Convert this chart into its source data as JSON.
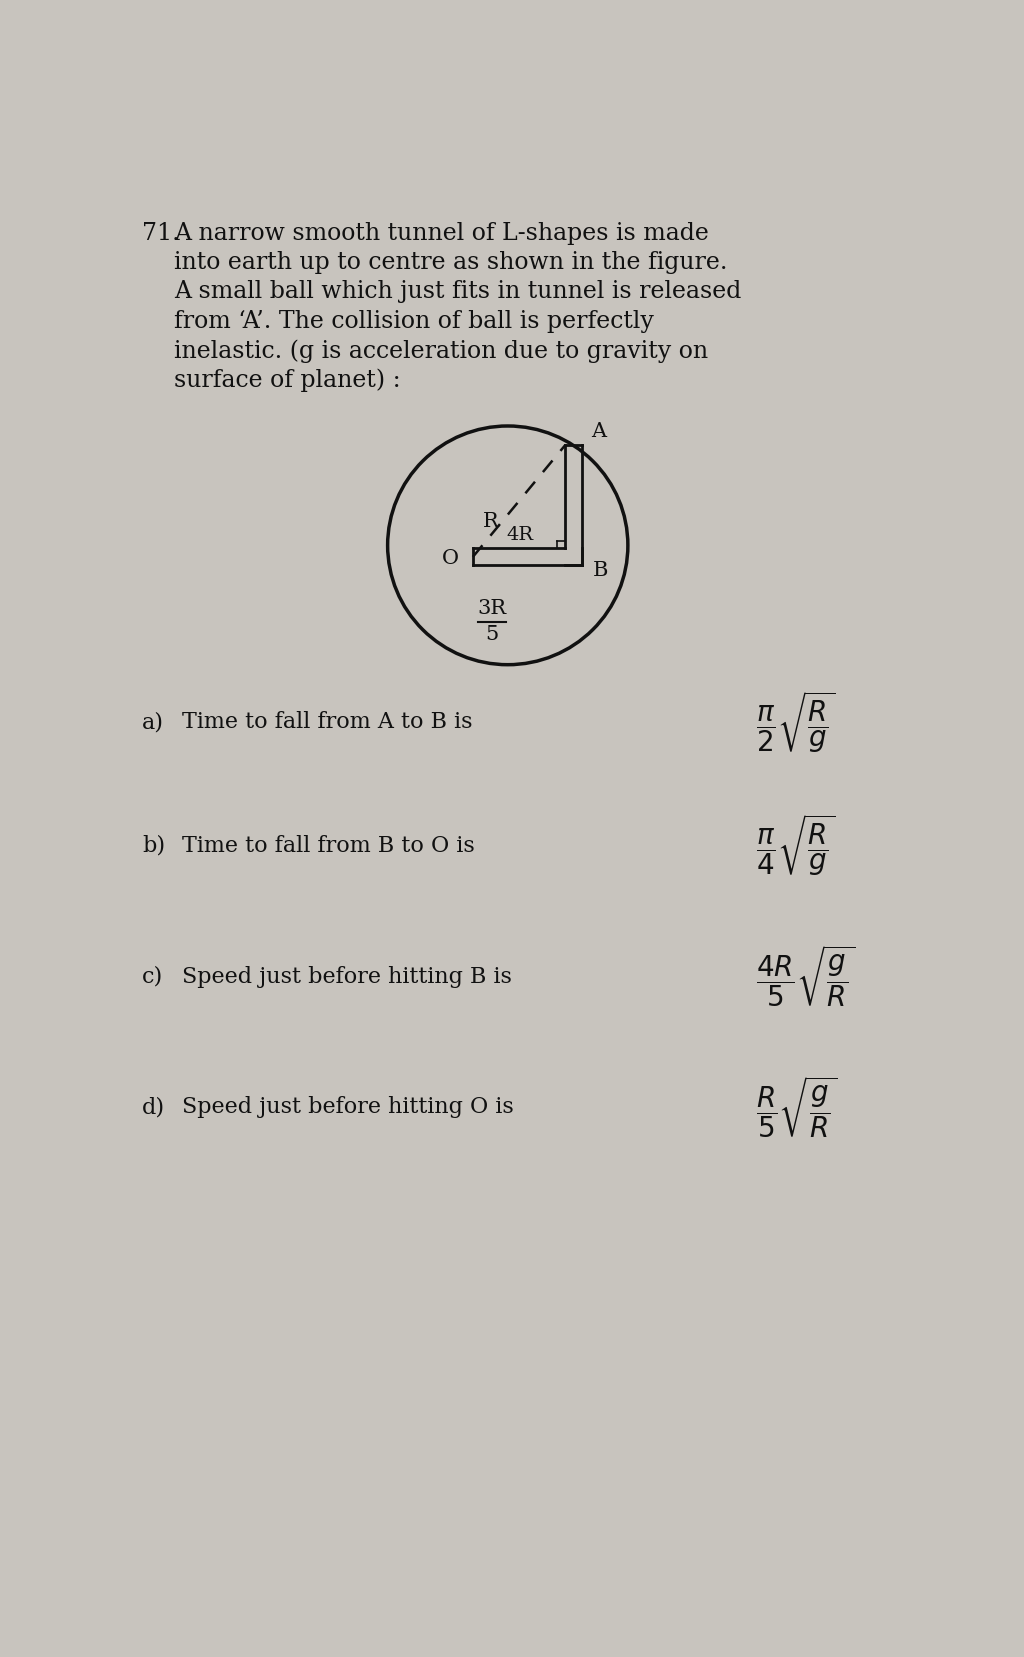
{
  "bg_color": "#c8c4be",
  "text_color": "#111111",
  "question_number": "71.",
  "question_text_lines": [
    "A narrow smooth tunnel of L-shapes is made",
    "into earth up to centre as shown in the figure.",
    "A small ball which just fits in tunnel is released",
    "from ‘A’. The collision of ball is perfectly",
    "inelastic. (g is acceleration due to gravity on",
    "surface of planet) :"
  ],
  "answers": [
    {
      "label": "a)",
      "text": "Time to fall from A to B is"
    },
    {
      "label": "b)",
      "text": "Time to fall from B to O is"
    },
    {
      "label": "c)",
      "text": "Speed just before hitting B is"
    },
    {
      "label": "d)",
      "text": "Speed just before hitting O is"
    }
  ],
  "font_size_question": 17,
  "font_size_answer": 16
}
